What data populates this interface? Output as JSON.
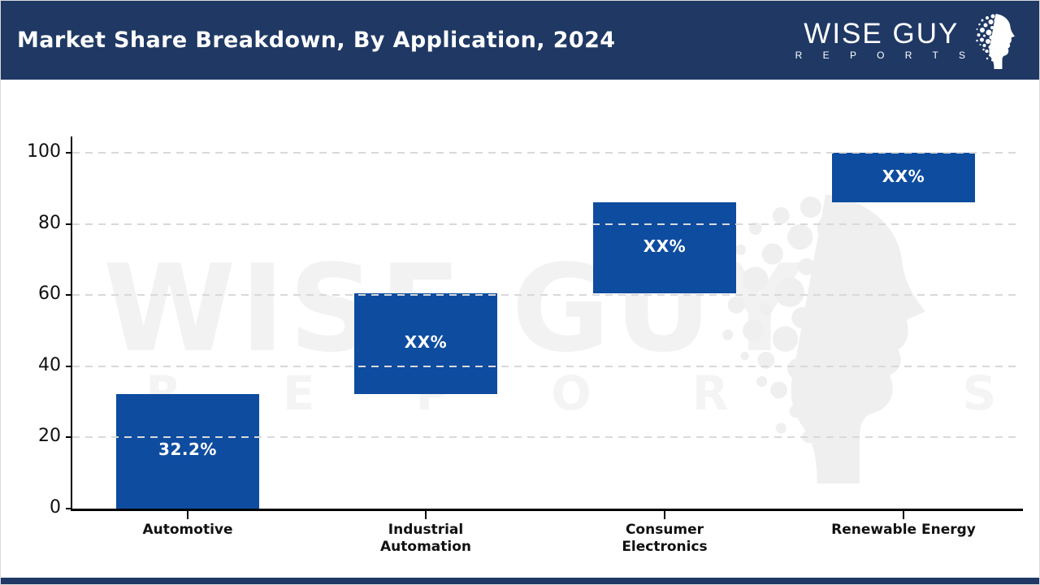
{
  "header": {
    "title": "Market Share Breakdown, By Application, 2024",
    "logo": {
      "line1": "WISE GUY",
      "line2": "R E P O R T S"
    }
  },
  "watermark": {
    "line1": "WISE GUY",
    "line2": "R E P O R T S"
  },
  "colors": {
    "header_bg": "#1f3864",
    "bar": "#0d4c9f",
    "bar_label": "#ffffff",
    "gridline": "#d9d9d9",
    "axis": "#000000",
    "watermark": "#f2f2f2"
  },
  "icons": {
    "logo_head": "dotted-head-profile-icon"
  },
  "chart_data": {
    "type": "bar",
    "variant": "stacked-waterfall",
    "title": "Market Share Breakdown, By Application, 2024",
    "categories": [
      "Automotive",
      "Industrial\nAutomation",
      "Consumer\nElectronics",
      "Renewable Energy"
    ],
    "bars": [
      {
        "category": "Automotive",
        "label": "32.2%",
        "start": 0,
        "end": 32.2
      },
      {
        "category": "Industrial Automation",
        "label": "XX%",
        "start": 32.2,
        "end": 60.5
      },
      {
        "category": "Consumer Electronics",
        "label": "XX%",
        "start": 60.5,
        "end": 86.0
      },
      {
        "category": "Renewable Energy",
        "label": "XX%",
        "start": 86.0,
        "end": 100.0
      }
    ],
    "yticks": [
      0,
      20,
      40,
      60,
      80,
      100
    ],
    "ylim": [
      0,
      100
    ],
    "xlabel": "",
    "ylabel": "",
    "grid": "horizontal-dashed",
    "legend": "none"
  }
}
